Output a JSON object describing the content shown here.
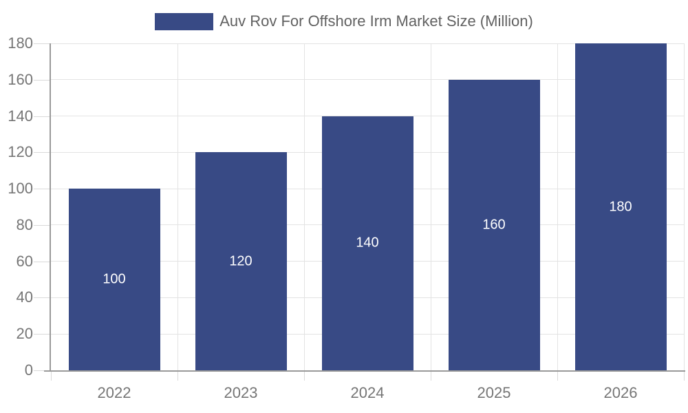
{
  "chart_data": {
    "type": "bar",
    "title": "Auv Rov For Offshore Irm Market Size (Million)",
    "legend": [
      {
        "label": "Auv Rov For Offshore Irm Market Size (Million)",
        "color": "#384A85"
      }
    ],
    "legend_position": "top-center",
    "categories": [
      "2022",
      "2023",
      "2024",
      "2025",
      "2026"
    ],
    "values": [
      100,
      120,
      140,
      160,
      180
    ],
    "bar_value_labels": [
      "100",
      "120",
      "140",
      "160",
      "180"
    ],
    "series": [
      {
        "name": "Auv Rov For Offshore Irm Market Size (Million)",
        "values": [
          100,
          120,
          140,
          160,
          180
        ]
      }
    ],
    "xlabel": "",
    "ylabel": "",
    "ylim": [
      0,
      180
    ],
    "y_ticks": [
      0,
      20,
      40,
      60,
      80,
      100,
      120,
      140,
      160,
      180
    ],
    "grid": true,
    "colors": {
      "bar": "#384A85",
      "bar_label_text": "#ffffff",
      "grid": "#e3e3e3",
      "axis_line": "#999999",
      "tick_mark": "#d9d9d9",
      "tick_label_text": "#757575",
      "title_text": "#616161",
      "background": "#ffffff"
    }
  }
}
